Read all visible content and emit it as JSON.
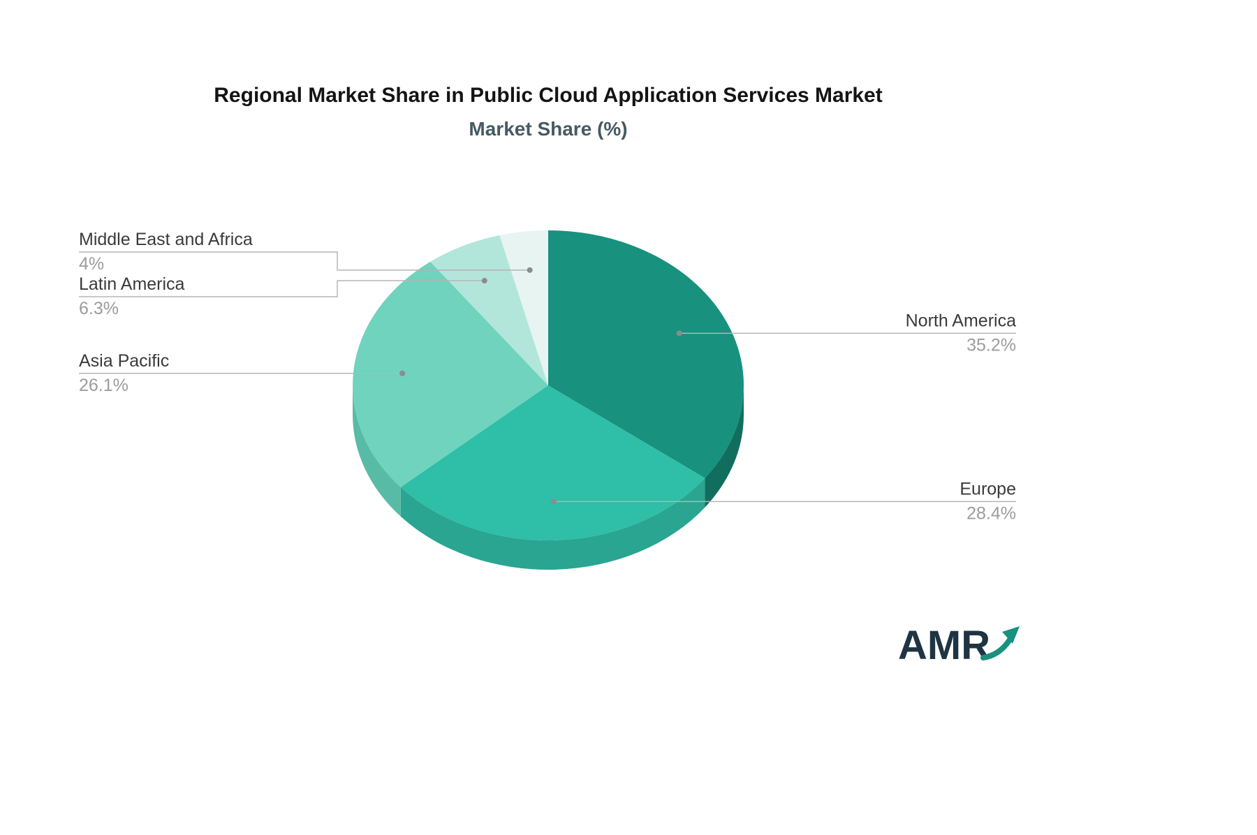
{
  "chart_data": {
    "type": "pie",
    "title": "Regional Market Share in Public Cloud Application Services Market",
    "subtitle": "Market Share (%)",
    "unit": "%",
    "style": "3d",
    "direction": "clockwise",
    "start_angle_deg": 0,
    "legend_position": "none",
    "labels_style": "callout-leader-lines",
    "categories": [
      "North America",
      "Europe",
      "Asia Pacific",
      "Latin America",
      "Middle East and Africa"
    ],
    "values": [
      35.2,
      28.4,
      26.1,
      6.3,
      4
    ],
    "value_labels": [
      "35.2%",
      "28.4%",
      "26.1%",
      "6.3%",
      "4%"
    ],
    "slice_colors": [
      "#18917f",
      "#2fbea7",
      "#6fd3bd",
      "#b2e6da",
      "#e7f4f1"
    ],
    "slice_side_colors": [
      "#116e5f",
      "#29a591",
      "#58bba6",
      "#95d4c6",
      "#c9e6df"
    ]
  },
  "logo": {
    "text": "AMR"
  },
  "colors": {
    "background": "#ffffff",
    "title": "#141414",
    "subtitle": "#455a64",
    "label": "#3a3a3a",
    "value": "#9c9c9c",
    "leader_line": "#b5b5b5",
    "leader_dot": "#8c8c8c",
    "logo_text": "#1f3442",
    "logo_arrow": "#18917f"
  }
}
